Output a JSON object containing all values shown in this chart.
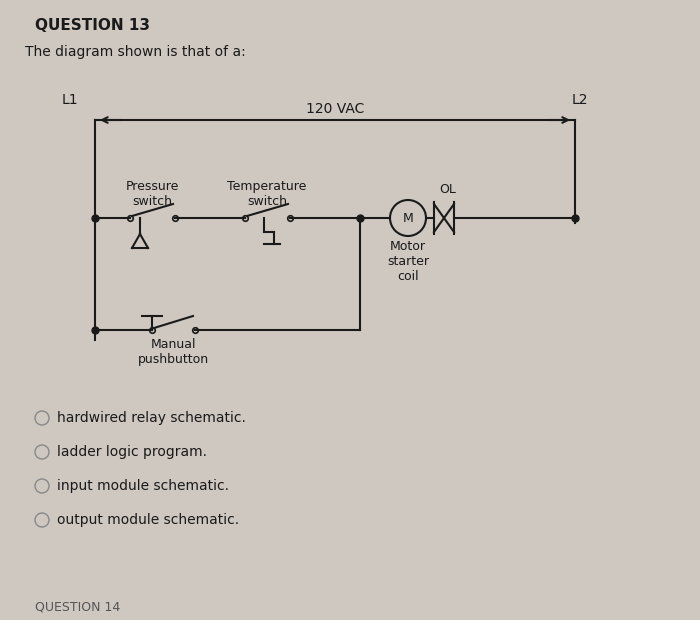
{
  "title": "QUESTION 13",
  "subtitle": "The diagram shown is that of a:",
  "bg_color": "#cec8c0",
  "text_color": "#1a1a1a",
  "choices": [
    "hardwired relay schematic.",
    "ladder logic program.",
    "input module schematic.",
    "output module schematic."
  ],
  "footer": "QUESTION 14",
  "L1_label": "L1",
  "L2_label": "L2",
  "vac_label": "120 VAC",
  "labels": {
    "pressure_switch": "Pressure\nswitch",
    "temperature_switch": "Temperature\nswitch",
    "motor_starter": "Motor\nstarter\ncoil",
    "OL": "OL",
    "M": "M",
    "manual_pushbutton": "Manual\npushbutton"
  }
}
